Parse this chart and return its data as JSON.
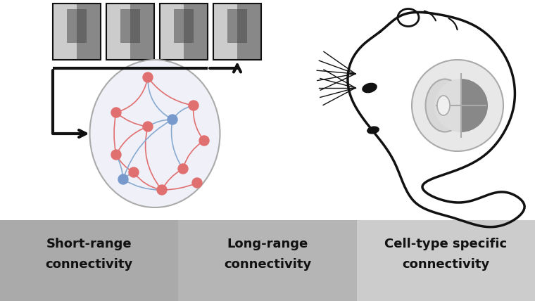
{
  "bg_color": "#ffffff",
  "panel_colors": [
    "#aaaaaa",
    "#b5b5b5",
    "#cccccc"
  ],
  "panel_texts": [
    "Short-range\nconnectivity",
    "Long-range\nconnectivity",
    "Cell-type specific\nconnectivity"
  ],
  "panel_text_size": 13,
  "red_node_color": "#e07070",
  "blue_node_color": "#7799cc",
  "red_edge_color": "#e07070",
  "blue_edge_color": "#88aad0",
  "ellipse_facecolor": "#f0f0f8",
  "ellipse_edgecolor": "#aaaaaa",
  "arrow_color": "#111111",
  "mouse_body_color": "#cccccc",
  "mouse_edge_color": "#111111",
  "eye_light_color": "#dddddd",
  "eye_dark_color": "#888888"
}
